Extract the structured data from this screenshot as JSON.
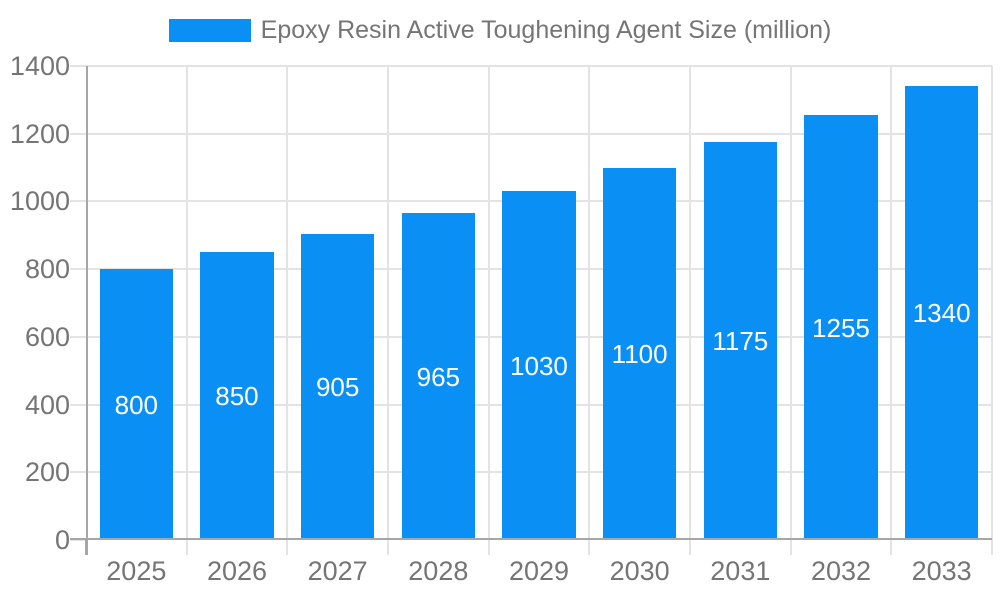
{
  "legend": {
    "label": "Epoxy Resin Active Toughening Agent Size (million)",
    "swatch_color": "#0a90f5"
  },
  "chart_data": {
    "type": "bar",
    "categories": [
      "2025",
      "2026",
      "2027",
      "2028",
      "2029",
      "2030",
      "2031",
      "2032",
      "2033"
    ],
    "values": [
      800,
      850,
      905,
      965,
      1030,
      1100,
      1175,
      1255,
      1340
    ],
    "title": "Epoxy Resin Active Toughening Agent Size (million)",
    "xlabel": "",
    "ylabel": "",
    "ylim": [
      0,
      1400
    ],
    "yticks": [
      0,
      200,
      400,
      600,
      800,
      1000,
      1200,
      1400
    ],
    "grid": true,
    "legend_position": "top",
    "bar_labels_inside": true
  },
  "colors": {
    "bar": "#0a90f5",
    "grid": "#e3e3e3",
    "axis": "#a6a6a6",
    "tick_label": "#757575",
    "bar_label": "#ffffff",
    "background": "#ffffff"
  }
}
